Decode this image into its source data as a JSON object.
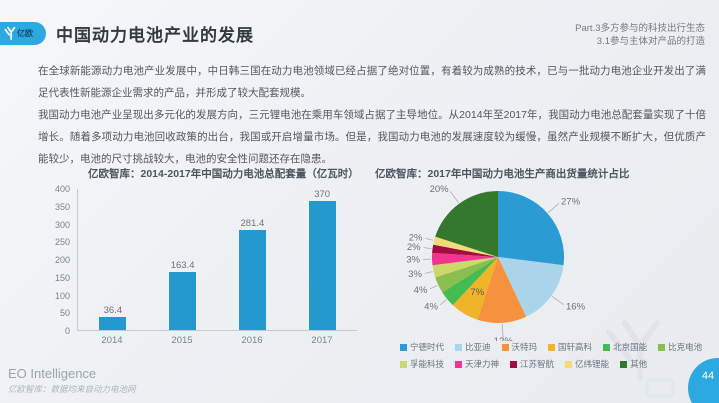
{
  "header": {
    "logo_text": "亿欧",
    "title": "中国动力电池产业的发展",
    "section_line1": "Part.3多方参与的科技出行生态",
    "section_line2": "3.1参与主体对产品的打造"
  },
  "body": {
    "paragraph1": "在全球新能源动力电池产业发展中，中日韩三国在动力电池领域已经占据了绝对位置，有着较为成熟的技术，已与一批动力电池企业开发出了满足代表性新能源企业需求的产品，并形成了较大配套规模。",
    "paragraph2": "我国动力电池产业呈现出多元化的发展方向，三元锂电池在乘用车领域占据了主导地位。从2014年至2017年，我国动力电池总配套量实现了十倍增长。随着多项动力电池回收政策的出台，我国或开启增量市场。但是，我国动力电池的发展速度较为缓慢，虽然产业规模不断扩大，但优质产能较少，电池的尺寸挑战较大，电池的安全性问题还存在隐患。"
  },
  "chart_data": [
    {
      "type": "bar",
      "title": "亿欧智库：2014-2017年中国动力电池总配套量（亿瓦时）",
      "categories": [
        "2014",
        "2015",
        "2016",
        "2017"
      ],
      "values": [
        36.4,
        163.4,
        281.4,
        370
      ],
      "value_labels": [
        "36.4",
        "163.4",
        "281.4",
        "370"
      ],
      "xlabel": "",
      "ylabel": "",
      "ylim": [
        0,
        400
      ],
      "yticks": [
        0,
        50,
        100,
        150,
        200,
        250,
        300,
        350,
        400
      ],
      "grid": false,
      "bar_color": "#2499ce"
    },
    {
      "type": "pie",
      "title": "亿欧智库：2017年中国动力电池生产商出货量统计占比",
      "legend_position": "bottom",
      "slices": [
        {
          "label": "宁德时代",
          "value": 27,
          "pct": "27%",
          "color": "#2b9cd3"
        },
        {
          "label": "比亚迪",
          "value": 16,
          "pct": "16%",
          "color": "#a9d4e9"
        },
        {
          "label": "沃特玛",
          "value": 12,
          "pct": "12%",
          "color": "#f6913d"
        },
        {
          "label": "国轩高科",
          "value": 7,
          "pct": "7%",
          "color": "#f0b429"
        },
        {
          "label": "北京国能",
          "value": 4,
          "pct": "4%",
          "color": "#44bc52"
        },
        {
          "label": "比克电池",
          "value": 4,
          "pct": "4%",
          "color": "#8cbe4f"
        },
        {
          "label": "孚能科技",
          "value": 3,
          "pct": "3%",
          "color": "#cbd96a"
        },
        {
          "label": "天津力神",
          "value": 3,
          "pct": "3%",
          "color": "#f2368f"
        },
        {
          "label": "江苏智航",
          "value": 2,
          "pct": "2%",
          "color": "#a50c40"
        },
        {
          "label": "亿纬锂能",
          "value": 2,
          "pct": "2%",
          "color": "#f2dc7a"
        },
        {
          "label": "其他",
          "value": 20,
          "pct": "20%",
          "color": "#34782e"
        }
      ]
    }
  ],
  "footer": {
    "brand": "EO Intelligence",
    "source_note": "亿欧智库：数据均来自动力电池网",
    "page_number": "44"
  },
  "colors": {
    "accent_blue": "#2ba9e0",
    "bar_blue": "#2499ce",
    "title_text": "#343a42",
    "body_text": "#53575e"
  }
}
